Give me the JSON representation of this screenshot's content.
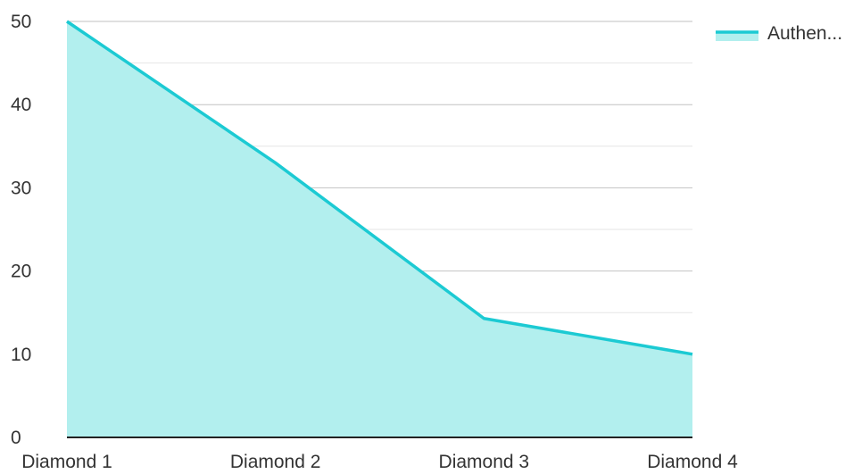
{
  "chart_data": {
    "type": "area",
    "categories": [
      "Diamond 1",
      "Diamond 2",
      "Diamond 3",
      "Diamond 4"
    ],
    "series": [
      {
        "name": "Authen...",
        "values": [
          50,
          33,
          14.3,
          10
        ],
        "color": "#1ccad3",
        "fill_color": "#b2efee"
      }
    ],
    "ylim": [
      0,
      50
    ],
    "y_ticks": [
      0,
      10,
      20,
      30,
      40,
      50
    ],
    "grid": true,
    "legend": {
      "position": "top-right"
    }
  },
  "colors": {
    "grid_major": "#c2c2c2",
    "grid_minor": "#e6e6e6",
    "axis": "#222222"
  }
}
